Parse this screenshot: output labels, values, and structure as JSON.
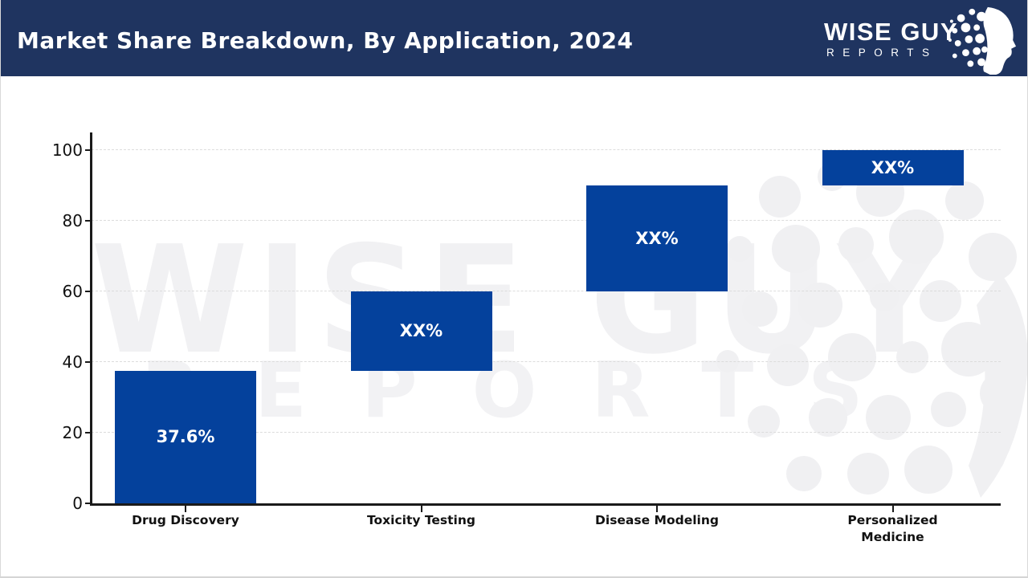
{
  "header": {
    "title": "Market Share Breakdown, By Application, 2024",
    "logo": {
      "line1": "WISE GUY",
      "line2": "REPORTS"
    }
  },
  "watermark": {
    "line1": "WISE GUY",
    "line2": "REPORTS"
  },
  "colors": {
    "header_navy": "#1f3460",
    "bar_blue": "#04419c",
    "grid_gray": "#dcdcdc",
    "watermark_gray": "#f1f1f3",
    "axis_black": "#1a1a1a",
    "bar_label_white": "#ffffff"
  },
  "chart_data": {
    "type": "bar",
    "subtype": "waterfall",
    "title": "Market Share Breakdown, By Application, 2024",
    "categories": [
      "Drug Discovery",
      "Toxicity Testing",
      "Disease Modeling",
      "Personalized Medicine"
    ],
    "categories_wrapped": [
      [
        "Drug Discovery"
      ],
      [
        "Toxicity Testing"
      ],
      [
        "Disease Modeling"
      ],
      [
        "Personalized",
        "Medicine"
      ]
    ],
    "segments": [
      {
        "category": "Drug Discovery",
        "start": 0,
        "end": 37.6,
        "label": "37.6%"
      },
      {
        "category": "Toxicity Testing",
        "start": 37.6,
        "end": 60,
        "label": "XX%"
      },
      {
        "category": "Disease Modeling",
        "start": 60,
        "end": 90,
        "label": "XX%"
      },
      {
        "category": "Personalized Medicine",
        "start": 90,
        "end": 100,
        "label": "XX%"
      }
    ],
    "yticks": [
      0,
      20,
      40,
      60,
      80,
      100
    ],
    "ylim": [
      0,
      105
    ],
    "xlabel": "",
    "ylabel": "",
    "grid": "horizontal-dashed",
    "legend": "none",
    "bar_color": "#04419c",
    "bar_label_color": "#ffffff"
  }
}
